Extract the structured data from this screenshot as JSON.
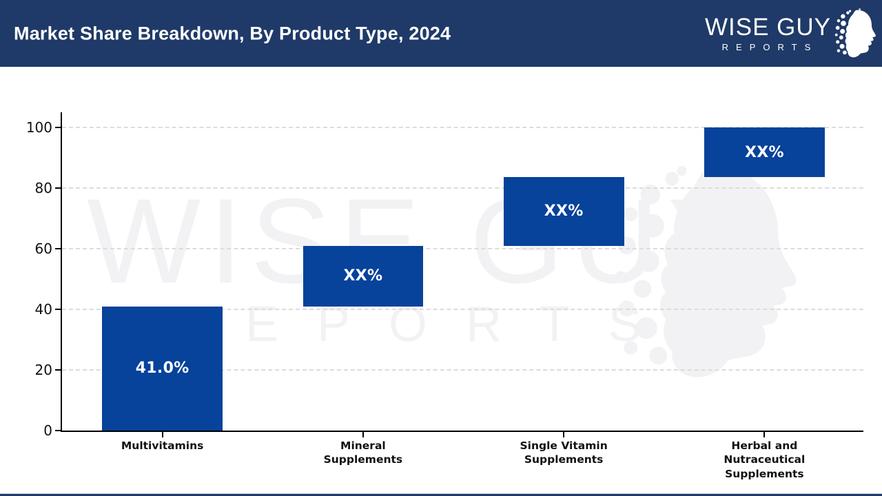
{
  "header": {
    "title": "Market Share Breakdown, By Product Type, 2024",
    "logo_line1": "WISE GUY",
    "logo_line2": "REPORTS",
    "bg_color": "#1f3a68"
  },
  "watermark": {
    "line1": "WISE GUY",
    "line2": "REPORTS"
  },
  "chart_data": {
    "type": "bar",
    "subtype": "waterfall",
    "title": "Market Share Breakdown, By Product Type, 2024",
    "categories": [
      "Multivitamins",
      "Mineral\nSupplements",
      "Single Vitamin\nSupplements",
      "Herbal and\nNutraceutical\nSupplements"
    ],
    "segments": [
      {
        "category": "Multivitamins",
        "start": 0,
        "end": 41,
        "value_label": "41.0%"
      },
      {
        "category": "Mineral Supplements",
        "start": 41,
        "end": 61,
        "value_label": "XX%"
      },
      {
        "category": "Single Vitamin Supplements",
        "start": 61,
        "end": 83.6,
        "value_label": "XX%"
      },
      {
        "category": "Herbal and Nutraceutical Supplements",
        "start": 83.6,
        "end": 100,
        "value_label": "XX%"
      }
    ],
    "xlabel": "",
    "ylabel": "",
    "ylim": [
      0,
      100
    ],
    "yticks": [
      0,
      20,
      40,
      60,
      80,
      100
    ],
    "grid": "horizontal-dashed",
    "legend": "none",
    "bar_color": "#07429b",
    "bar_label_color": "#ffffff"
  }
}
